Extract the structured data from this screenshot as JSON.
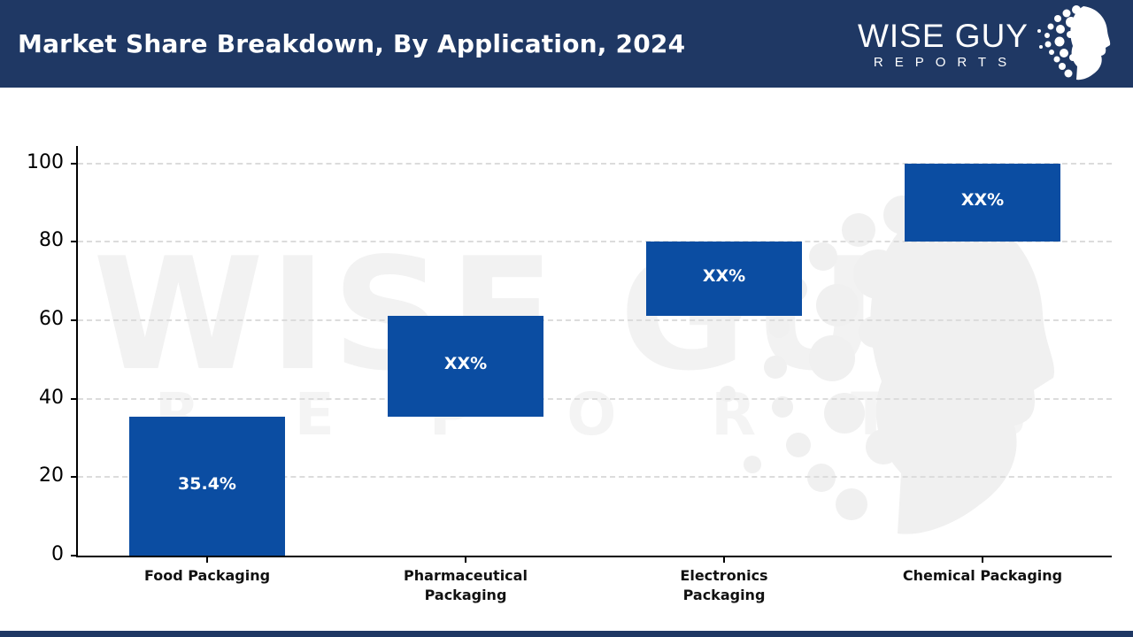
{
  "header": {
    "title": "Market Share Breakdown, By Application, 2024"
  },
  "logo": {
    "line1": "WISE GUY",
    "line2": "REPORTS"
  },
  "watermark": {
    "line1": "WISE GUY",
    "line2": "R E P O R T S"
  },
  "chart_data": {
    "type": "bar",
    "subtype": "waterfall",
    "title": "Market Share Breakdown, By Application, 2024",
    "categories": [
      "Food Packaging",
      "Pharmaceutical\nPackaging",
      "Electronics\nPackaging",
      "Chemical Packaging"
    ],
    "segments": [
      {
        "start": 0,
        "end": 35.4,
        "label": "35.4%"
      },
      {
        "start": 35.4,
        "end": 61,
        "label": "XX%"
      },
      {
        "start": 61,
        "end": 80,
        "label": "XX%"
      },
      {
        "start": 80,
        "end": 100,
        "label": "XX%"
      }
    ],
    "yticks": [
      0,
      20,
      40,
      60,
      80,
      100
    ],
    "ylim": [
      0,
      105
    ],
    "xlabel": "",
    "ylabel": "",
    "grid": "horizontal-dashed",
    "legend": "none",
    "bar_color": "#0b4da2",
    "bar_label_color": "#ffffff"
  },
  "colors": {
    "header_bg": "#1f3864",
    "footer_bg": "#1f3864",
    "grid": "#dcdcdc",
    "axis": "#000000",
    "watermark": "#f2f2f2"
  }
}
